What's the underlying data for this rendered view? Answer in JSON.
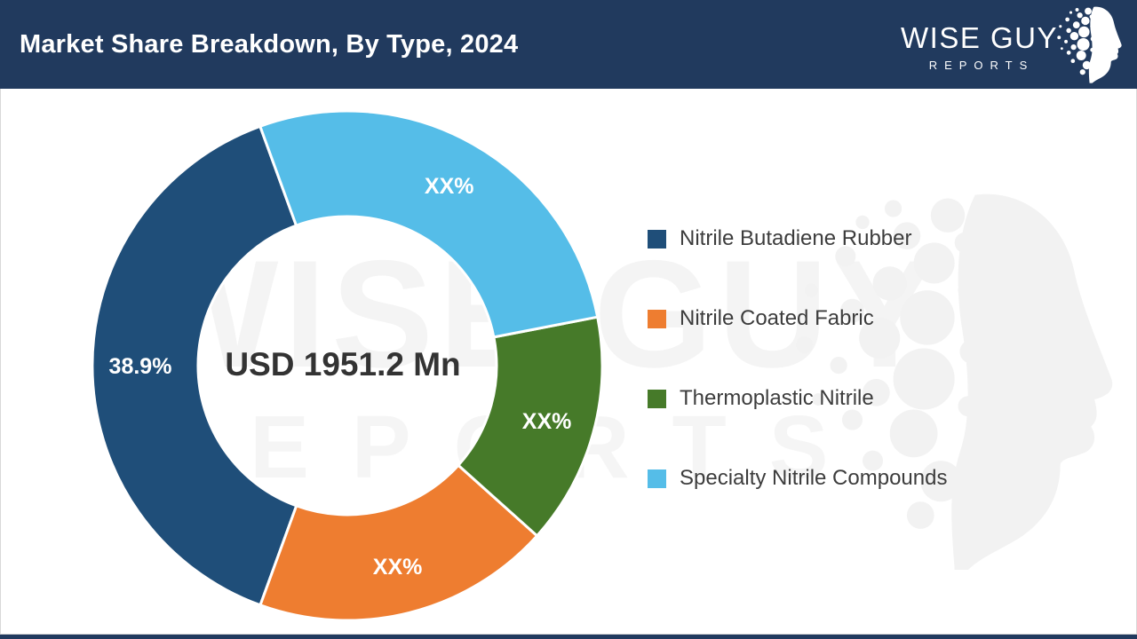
{
  "header": {
    "title": "Market Share Breakdown, By Type, 2024",
    "logo": {
      "line1": "WISE GUY",
      "line2": "REPORTS"
    }
  },
  "watermark": {
    "line1": "WISE GUY",
    "line2": "REPORTS"
  },
  "colors": {
    "header_bg": "#213a5e",
    "footer_bg": "#213a5e",
    "watermark": "#f4f4f4"
  },
  "chart_data": {
    "type": "pie",
    "subtype": "donut",
    "title": "Market Share Breakdown, By Type, 2024",
    "center_label": "USD 1951.2 Mn",
    "start_angle_deg": 110,
    "counterclockwise": true,
    "legend_position": "right",
    "categories": [
      "Nitrile Butadiene Rubber",
      "Nitrile Coated Fabric",
      "Thermoplastic Nitrile",
      "Specialty Nitrile Compounds"
    ],
    "segments": [
      {
        "name": "Nitrile Butadiene Rubber",
        "value_pct": 38.9,
        "display_label": "38.9%",
        "color": "#1f4e79"
      },
      {
        "name": "Nitrile Coated Fabric",
        "value_pct": 18.9,
        "display_label": "XX%",
        "color": "#ee7d30"
      },
      {
        "name": "Thermoplastic Nitrile",
        "value_pct": 14.7,
        "display_label": "XX%",
        "color": "#467a29"
      },
      {
        "name": "Specialty Nitrile Compounds",
        "value_pct": 27.5,
        "display_label": "XX%",
        "color": "#55bde8"
      }
    ]
  }
}
